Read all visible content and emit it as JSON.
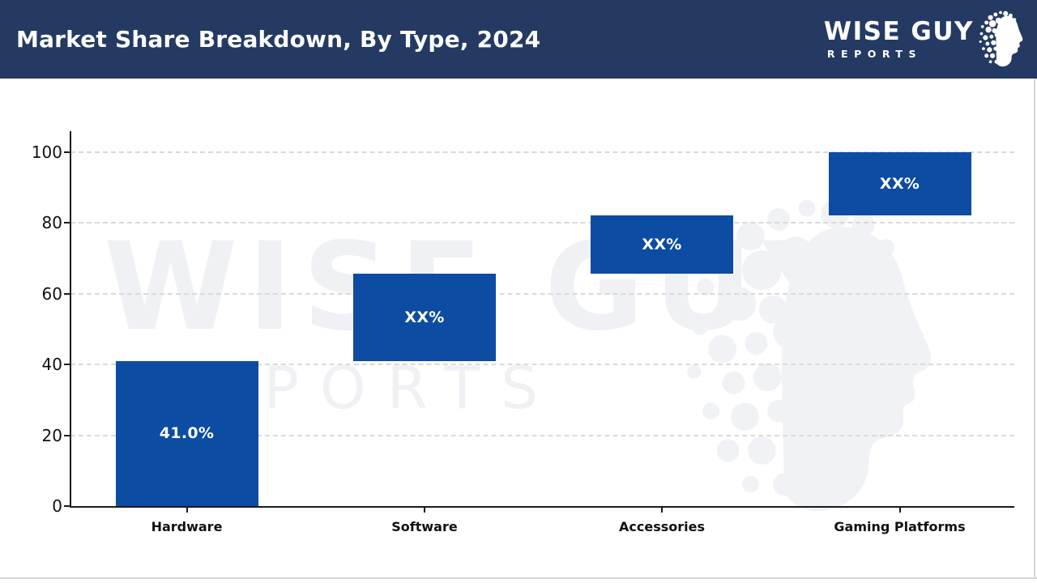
{
  "header": {
    "title": "Market Share Breakdown, By Type, 2024",
    "bg_color": "#243A63",
    "logo": {
      "line1": "WISE GUY",
      "line2": "REPORTS"
    }
  },
  "watermark": {
    "line1": "WISE GUY",
    "line2": "REPORTS"
  },
  "chart_data": {
    "type": "bar",
    "subtype": "floating-waterfall",
    "title": "Market Share Breakdown, By Type, 2024",
    "xlabel": "",
    "ylabel": "",
    "categories": [
      "Hardware",
      "Software",
      "Accessories",
      "Gaming Platforms"
    ],
    "segments": [
      {
        "category": "Hardware",
        "start": 0,
        "end": 41,
        "label": "41.0%"
      },
      {
        "category": "Software",
        "start": 41,
        "end": 65.5,
        "label": "XX%"
      },
      {
        "category": "Accessories",
        "start": 65.5,
        "end": 82,
        "label": "XX%"
      },
      {
        "category": "Gaming Platforms",
        "start": 82,
        "end": 100,
        "label": "XX%"
      }
    ],
    "ylim": [
      0,
      100
    ],
    "yticks": [
      0,
      20,
      40,
      60,
      80,
      100
    ],
    "grid": "horizontal-dashed",
    "legend": "none",
    "bar_color": "#0C4CA2",
    "bar_label_color": "#ffffff",
    "axis_color": "#1a1a1a",
    "grid_color": "#d9d9d9"
  }
}
